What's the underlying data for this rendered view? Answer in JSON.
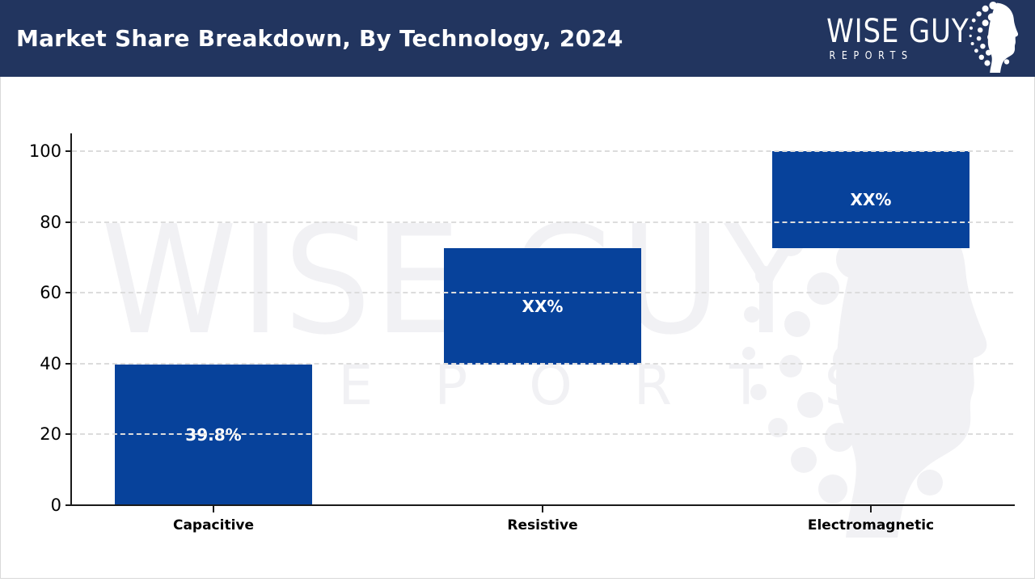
{
  "header": {
    "title": "Market Share Breakdown, By Technology, 2024",
    "logo": {
      "name": "WISE GUY",
      "subtitle": "REPORTS"
    }
  },
  "chart_data": {
    "type": "bar",
    "subtype": "waterfall",
    "title": "Market Share Breakdown, By Technology, 2024",
    "categories": [
      "Capacitive",
      "Resistive",
      "Electromagnetic"
    ],
    "series": [
      {
        "category": "Capacitive",
        "start": 0,
        "end": 39.8,
        "label": "39.8%"
      },
      {
        "category": "Resistive",
        "start": 39.8,
        "end": 72.7,
        "label": "XX%"
      },
      {
        "category": "Electromagnetic",
        "start": 72.7,
        "end": 100,
        "label": "XX%"
      }
    ],
    "yticks": [
      0,
      20,
      40,
      60,
      80,
      100
    ],
    "ylim": [
      0,
      100
    ],
    "xlabel": "",
    "ylabel": "",
    "grid": "horizontal-dashed-over-bars",
    "legend": "none",
    "colors": {
      "bar": "#07429b",
      "header_bg": "#22355f",
      "grid": "#dcdcdc",
      "axis": "#1a1a1a",
      "bar_label_text": "#ffffff",
      "watermark": "#f1f1f4"
    }
  }
}
